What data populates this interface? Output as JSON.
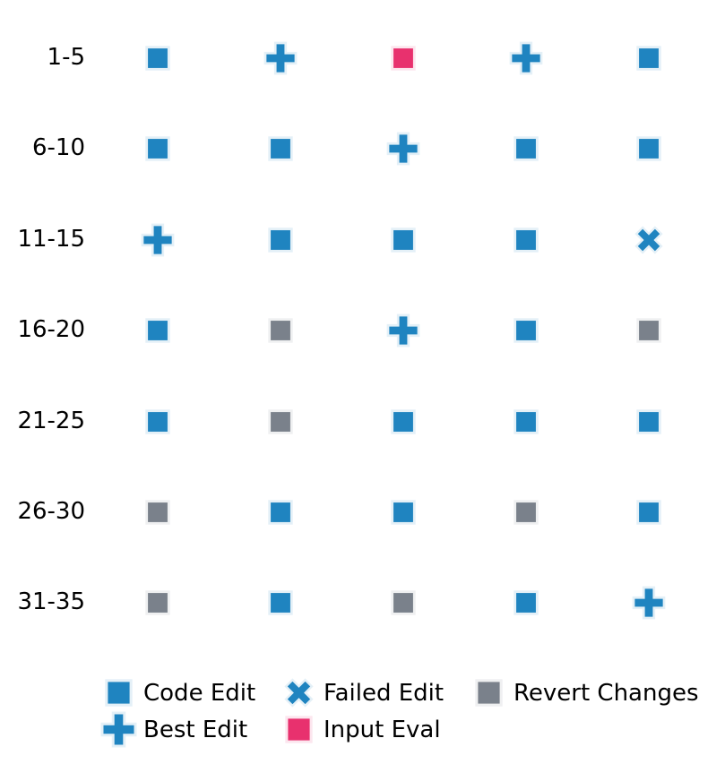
{
  "figure": {
    "background": "#ffffff",
    "text_color": "#000000"
  },
  "chart_data": {
    "type": "scatter",
    "title": "",
    "xlabel": "",
    "ylabel": "",
    "grid": false,
    "legend_position": "bottom",
    "rows": [
      {
        "label": "1-5",
        "markers": [
          "code_edit",
          "best_edit",
          "input_eval",
          "best_edit",
          "code_edit"
        ]
      },
      {
        "label": "6-10",
        "markers": [
          "code_edit",
          "code_edit",
          "best_edit",
          "code_edit",
          "code_edit"
        ]
      },
      {
        "label": "11-15",
        "markers": [
          "best_edit",
          "code_edit",
          "code_edit",
          "code_edit",
          "failed_edit"
        ]
      },
      {
        "label": "16-20",
        "markers": [
          "code_edit",
          "revert_changes",
          "best_edit",
          "code_edit",
          "revert_changes"
        ]
      },
      {
        "label": "21-25",
        "markers": [
          "code_edit",
          "revert_changes",
          "code_edit",
          "code_edit",
          "code_edit"
        ]
      },
      {
        "label": "26-30",
        "markers": [
          "revert_changes",
          "code_edit",
          "code_edit",
          "revert_changes",
          "code_edit"
        ]
      },
      {
        "label": "31-35",
        "markers": [
          "revert_changes",
          "code_edit",
          "revert_changes",
          "code_edit",
          "best_edit"
        ]
      }
    ],
    "columns_per_row": 5,
    "marker_types": {
      "code_edit": {
        "label": "Code Edit",
        "shape": "square",
        "color": "#1f84c0",
        "halo": "#e4f0f7"
      },
      "failed_edit": {
        "label": "Failed Edit",
        "shape": "x",
        "color": "#1f84c0",
        "halo": "#e4f0f7"
      },
      "revert_changes": {
        "label": "Revert Changes",
        "shape": "square",
        "color": "#7a818b",
        "halo": "#eff0f1"
      },
      "best_edit": {
        "label": "Best Edit",
        "shape": "plus",
        "color": "#1f84c0",
        "halo": "#e4f0f7"
      },
      "input_eval": {
        "label": "Input Eval",
        "shape": "square",
        "color": "#e8316e",
        "halo": "#fce6ee"
      }
    },
    "legend_rows": [
      [
        "code_edit",
        "failed_edit",
        "revert_changes"
      ],
      [
        "best_edit",
        "input_eval"
      ]
    ]
  }
}
